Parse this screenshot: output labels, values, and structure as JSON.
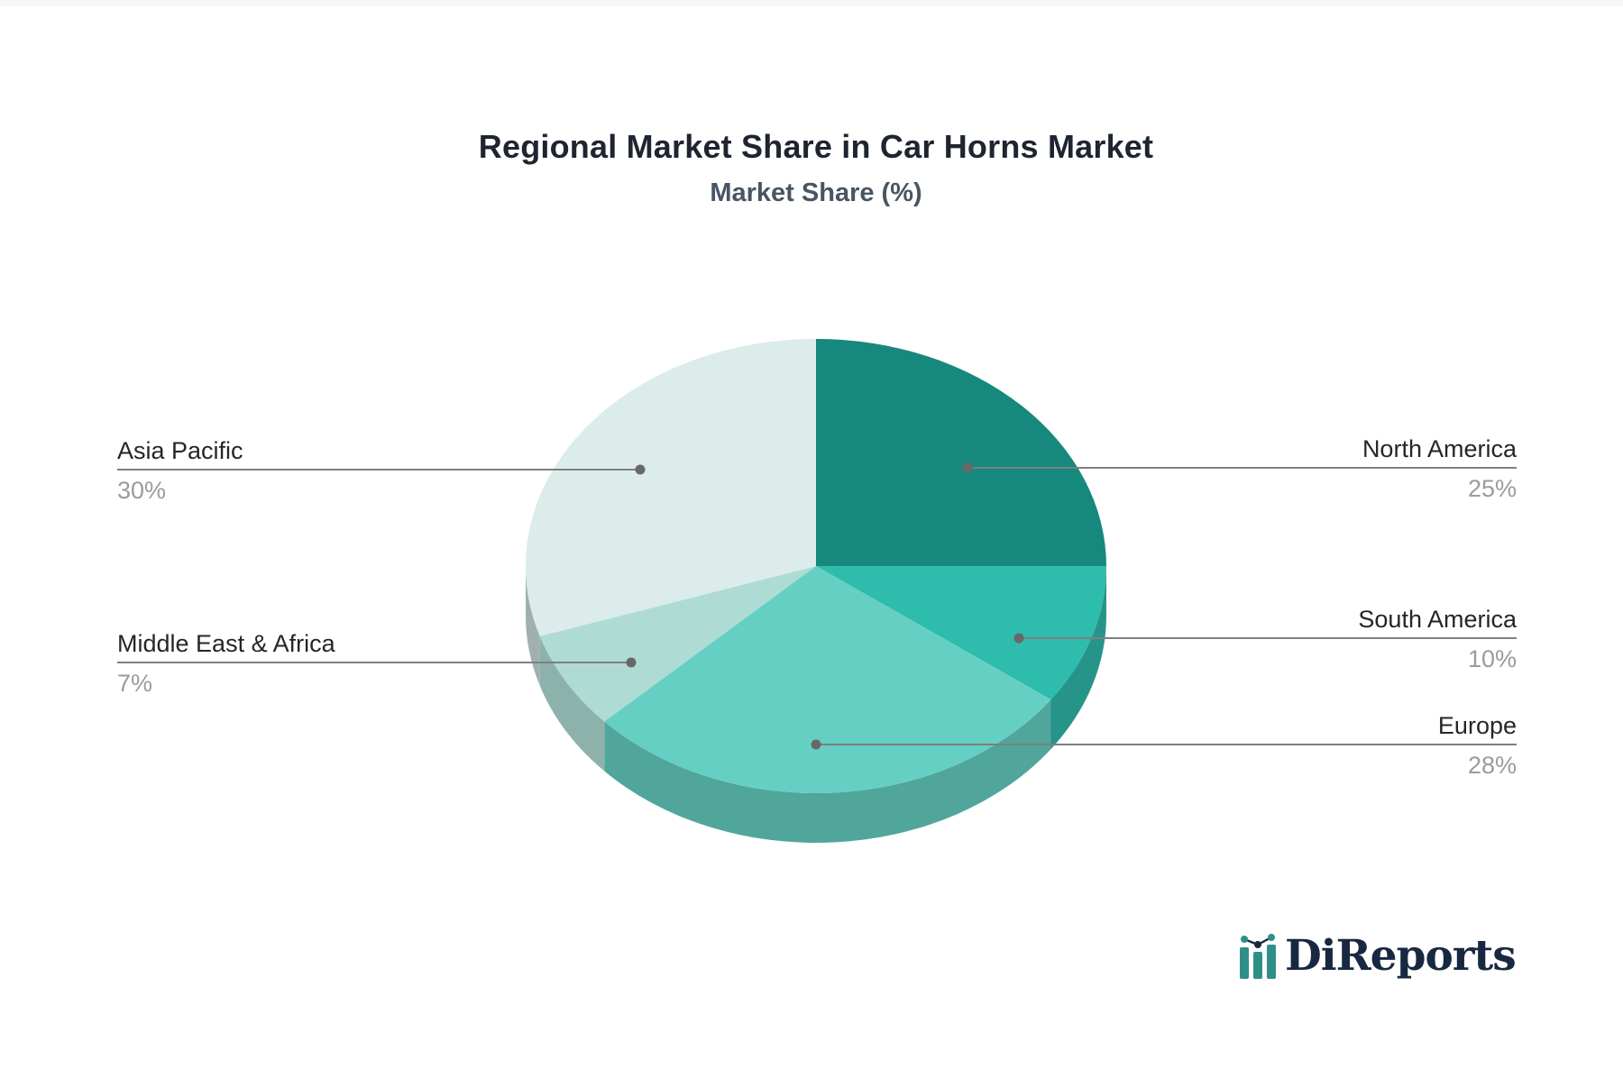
{
  "page": {
    "background": "#ffffff",
    "top_strip_color": "#f7f8f9"
  },
  "chart_data": {
    "type": "pie",
    "title": "Regional Market Share in Car Horns Market",
    "subtitle": "Market Share (%)",
    "unit": "%",
    "effect": "3d",
    "start_angle": "12-oclock, clockwise",
    "legend_position": "callout labels left and right",
    "slices": [
      {
        "label": "North America",
        "value": 25,
        "display": "25%",
        "color": "#17887d",
        "side_color": "#11655e",
        "callout_side": "right"
      },
      {
        "label": "South America",
        "value": 10,
        "display": "10%",
        "color": "#2ebcac",
        "side_color": "#27948a",
        "callout_side": "right"
      },
      {
        "label": "Europe",
        "value": 28,
        "display": "28%",
        "color": "#66cfc3",
        "side_color": "#50a69b",
        "callout_side": "right"
      },
      {
        "label": "Middle East & Africa",
        "value": 7,
        "display": "7%",
        "color": "#aedcd4",
        "side_color": "#8db2ab",
        "callout_side": "left"
      },
      {
        "label": "Asia Pacific",
        "value": 30,
        "display": "30%",
        "color": "#dcecea",
        "side_color": "#9fb0ae",
        "callout_side": "left"
      }
    ],
    "colors": {
      "leader_line": "#7f7f7f",
      "dot": "#686868",
      "label_text": "#262626",
      "value_text": "#9b9b9b",
      "title_text": "#1e2530",
      "subtitle_text": "#495563"
    }
  },
  "branding": {
    "logo_text": "DiReports",
    "logo_navy": "#182840",
    "logo_teal": "#2f8f88"
  }
}
